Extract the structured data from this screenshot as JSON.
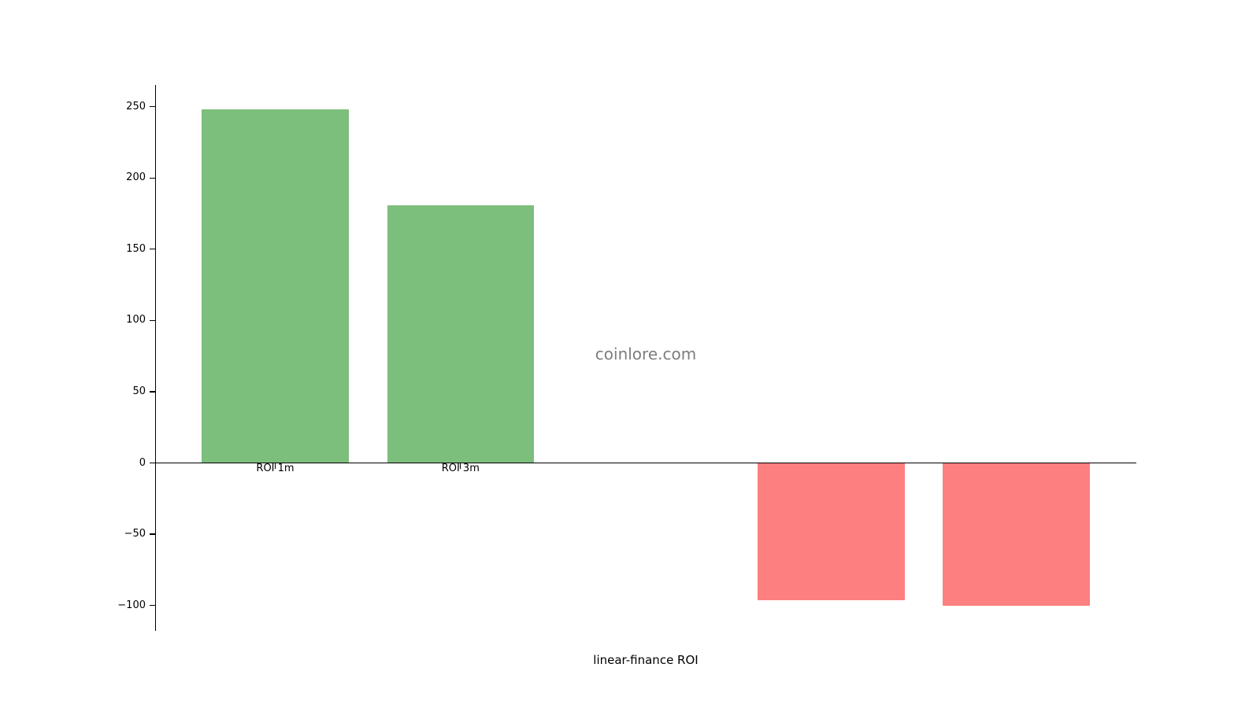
{
  "chart_data": {
    "type": "bar",
    "title": "linear-finance ROI",
    "watermark": "coinlore.com",
    "categories": [
      "ROI 1m",
      "ROI 3m",
      "",
      "",
      ""
    ],
    "values": [
      248,
      181,
      null,
      -96,
      -100
    ],
    "yticks": [
      250,
      200,
      150,
      100,
      50,
      0,
      -50,
      -100
    ],
    "ylim": [
      -118,
      265
    ],
    "xlabel": "",
    "ylabel": "",
    "grid": false,
    "legend": false,
    "colors": {
      "positive": "#7cbe7c",
      "negative": "#fe7f7f",
      "axis": "#000000",
      "tick_text": "#000000",
      "title_text": "#000000",
      "watermark_text": "#7d7d7d"
    }
  }
}
